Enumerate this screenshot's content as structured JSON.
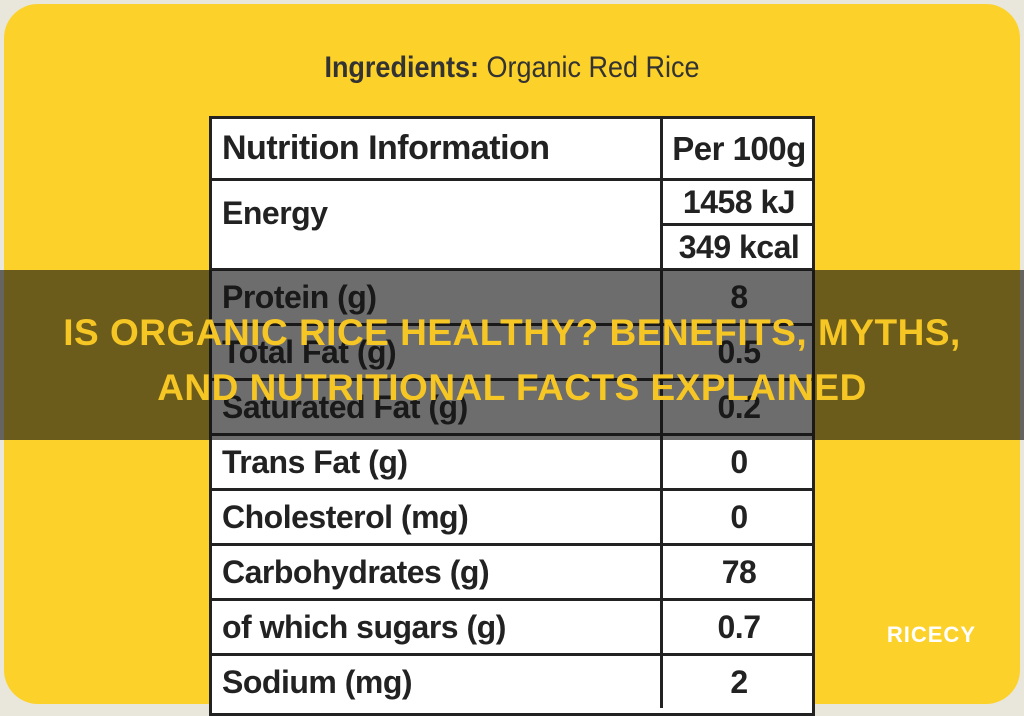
{
  "ingredients": {
    "label": "Ingredients:",
    "value": "Organic Red Rice"
  },
  "table": {
    "header": [
      "Nutrition Information",
      "Per 100g"
    ],
    "energy": {
      "label": "Energy",
      "values": [
        "1458 kJ",
        "349 kcal"
      ]
    },
    "rows": [
      [
        "Protein (g)",
        "8"
      ],
      [
        "Total Fat (g)",
        "0.5"
      ],
      [
        "Saturated Fat (g)",
        "0.2"
      ],
      [
        "Trans Fat (g)",
        "0"
      ],
      [
        "Cholesterol (mg)",
        "0"
      ],
      [
        "Carbohydrates (g)",
        "78"
      ],
      [
        "of which sugars (g)",
        "0.7"
      ],
      [
        "Sodium (mg)",
        "2"
      ]
    ]
  },
  "title_lines": [
    "IS ORGANIC RICE HEALTHY? BENEFITS, MYTHS,",
    "AND NUTRITIONAL FACTS EXPLAINED"
  ],
  "watermark": "RICECY"
}
